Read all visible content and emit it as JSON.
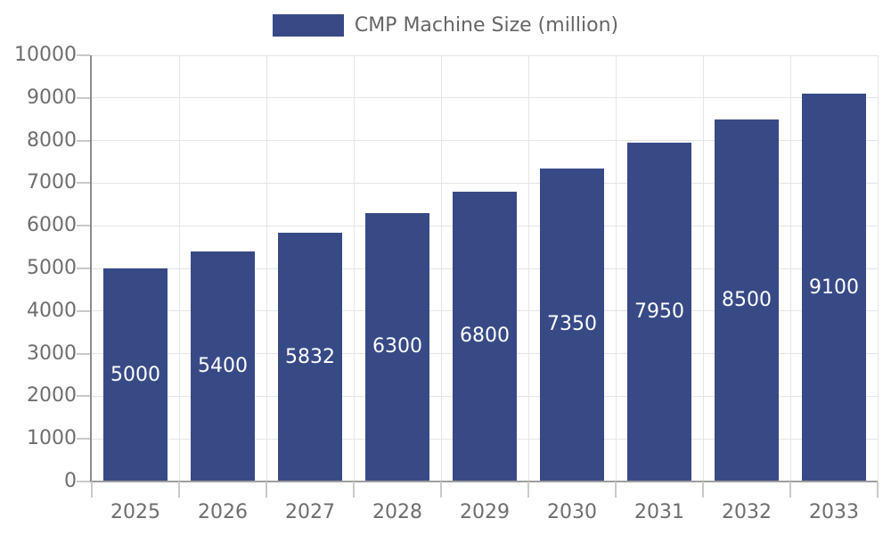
{
  "chart_data": {
    "type": "bar",
    "title": "CMP Machine Size (million)",
    "categories": [
      "2025",
      "2026",
      "2027",
      "2028",
      "2029",
      "2030",
      "2031",
      "2032",
      "2033"
    ],
    "values": [
      5000,
      5400,
      5832,
      6300,
      6800,
      7350,
      7950,
      8500,
      9100
    ],
    "xlabel": "",
    "ylabel": "",
    "ylim": [
      0,
      10000
    ],
    "ytick_step": 1000,
    "grid": true,
    "legend_position": "top-center",
    "bar_color": "#384a86",
    "bar_label_color": "#ffffff",
    "axis_text_color": "#6e6e6e",
    "legend_text_color": "#666666",
    "gridline_color": "#e5e5e5"
  }
}
